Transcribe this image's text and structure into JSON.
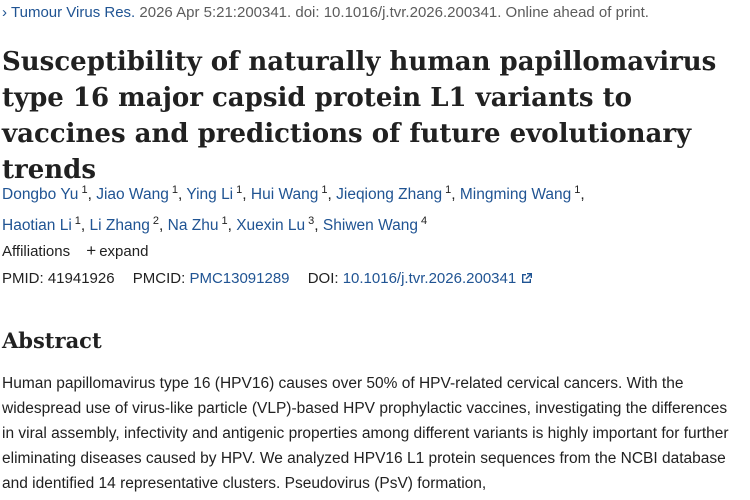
{
  "citation": {
    "journal": "Tumour Virus Res.",
    "details": "2026 Apr 5:21:200341. doi: 10.1016/j.tvr.2026.200341. Online ahead of print."
  },
  "title": "Susceptibility of naturally human papillomavirus type 16 major capsid protein L1 variants to vaccines and predictions of future evolutionary trends",
  "authors": [
    {
      "name": "Dongbo Yu",
      "aff": "1"
    },
    {
      "name": "Jiao Wang",
      "aff": "1"
    },
    {
      "name": "Ying Li",
      "aff": "1"
    },
    {
      "name": "Hui Wang",
      "aff": "1"
    },
    {
      "name": "Jieqiong Zhang",
      "aff": "1"
    },
    {
      "name": "Mingming Wang",
      "aff": "1"
    },
    {
      "name": "Haotian Li",
      "aff": "1"
    },
    {
      "name": "Li Zhang",
      "aff": "2"
    },
    {
      "name": "Na Zhu",
      "aff": "1"
    },
    {
      "name": "Xuexin Lu",
      "aff": "3"
    },
    {
      "name": "Shiwen Wang",
      "aff": "4"
    }
  ],
  "affiliations": {
    "label": "Affiliations",
    "expand_label": "expand"
  },
  "ids": {
    "pmid_label": "PMID:",
    "pmid": "41941926",
    "pmcid_label": "PMCID:",
    "pmcid": "PMC13091289",
    "doi_label": "DOI:",
    "doi": "10.1016/j.tvr.2026.200341"
  },
  "abstract": {
    "heading": "Abstract",
    "text": "Human papillomavirus type 16 (HPV16) causes over 50% of HPV-related cervical cancers. With the widespread use of virus-like particle (VLP)-based HPV prophylactic vaccines, investigating the differences in viral assembly, infectivity and antigenic properties among different variants is highly important for further eliminating diseases caused by HPV. We analyzed HPV16 L1 protein sequences from the NCBI database and identified 14 representative clusters. Pseudovirus (PsV) formation,"
  }
}
